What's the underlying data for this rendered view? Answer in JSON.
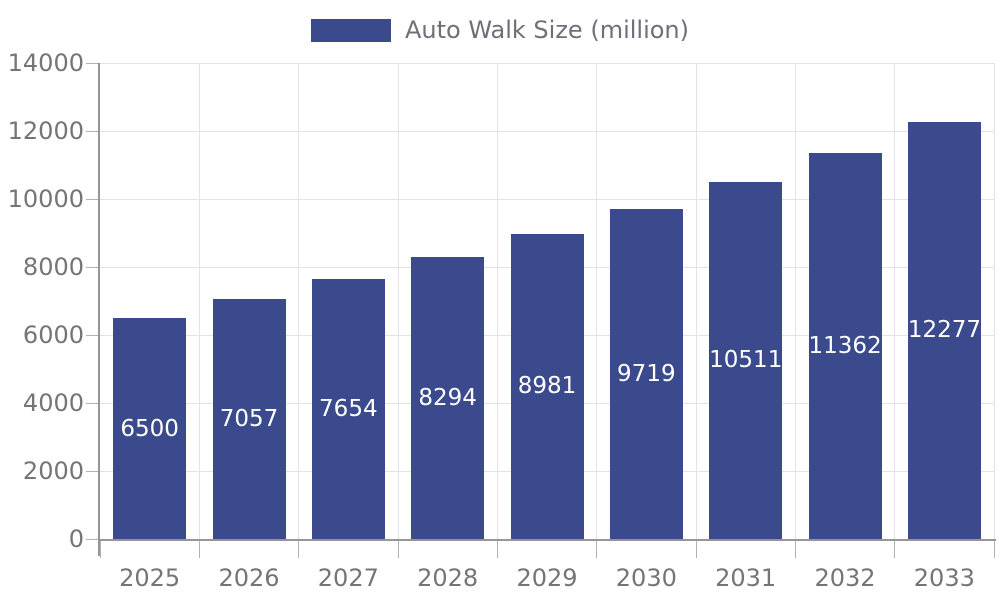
{
  "chart_data": {
    "type": "bar",
    "title": "Auto Walk Size (million)",
    "legend": [
      "Auto Walk Size (million)"
    ],
    "legend_position": "top",
    "categories": [
      "2025",
      "2026",
      "2027",
      "2028",
      "2029",
      "2030",
      "2031",
      "2032",
      "2033"
    ],
    "values": [
      6500,
      7057,
      7654,
      8294,
      8981,
      9719,
      10511,
      11362,
      12277
    ],
    "xlabel": "",
    "ylabel": "",
    "ylim": [
      0,
      14000
    ],
    "yticks": [
      0,
      2000,
      4000,
      6000,
      8000,
      10000,
      12000,
      14000
    ],
    "grid": true,
    "bar_labels_visible": true,
    "colors": {
      "bar": "#3A4A8C",
      "bar_label": "#FFFFFF",
      "grid": "#E2E2E8",
      "axis": "#969696",
      "tick": "#B0B0B6",
      "tick_text": "#757575",
      "legend_text": "#6E7079",
      "background": "#FFFFFF"
    }
  }
}
